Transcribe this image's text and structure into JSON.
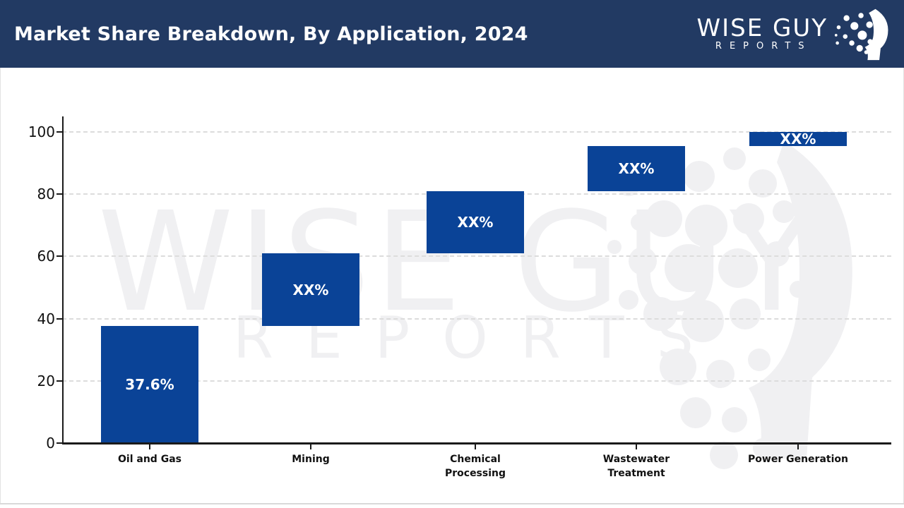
{
  "header": {
    "title": "Market Share Breakdown, By Application, 2024",
    "logo": {
      "line1": "WISE GUY",
      "line2": "REPORTS"
    }
  },
  "watermark": {
    "line1": "WISE GUY",
    "line2": "REPORTS"
  },
  "chart_data": {
    "type": "bar",
    "variant": "waterfall",
    "title": "Market Share Breakdown, By Application, 2024",
    "categories": [
      "Oil and Gas",
      "Mining",
      "Chemical Processing",
      "Wastewater Treatment",
      "Power Generation"
    ],
    "category_lines": [
      [
        "Oil and Gas"
      ],
      [
        "Mining"
      ],
      [
        "Chemical",
        "Processing"
      ],
      [
        "Wastewater",
        "Treatment"
      ],
      [
        "Power Generation"
      ]
    ],
    "segments": [
      {
        "category": "Oil and Gas",
        "start": 0,
        "end": 37.6,
        "label": "37.6%"
      },
      {
        "category": "Mining",
        "start": 37.6,
        "end": 61,
        "label": "XX%"
      },
      {
        "category": "Chemical Processing",
        "start": 61,
        "end": 81,
        "label": "XX%"
      },
      {
        "category": "Wastewater Treatment",
        "start": 81,
        "end": 95.5,
        "label": "XX%"
      },
      {
        "category": "Power Generation",
        "start": 95.5,
        "end": 100,
        "label": "XX%"
      }
    ],
    "yticks": [
      0,
      20,
      40,
      60,
      80,
      100
    ],
    "ylim": [
      0,
      105
    ],
    "xlabel": "",
    "ylabel": "",
    "grid": "horizontal-dashed",
    "legend": "none",
    "bar_color": "#0A4397",
    "bar_label_color": "#FFFFFF",
    "header_color": "#223A63"
  }
}
